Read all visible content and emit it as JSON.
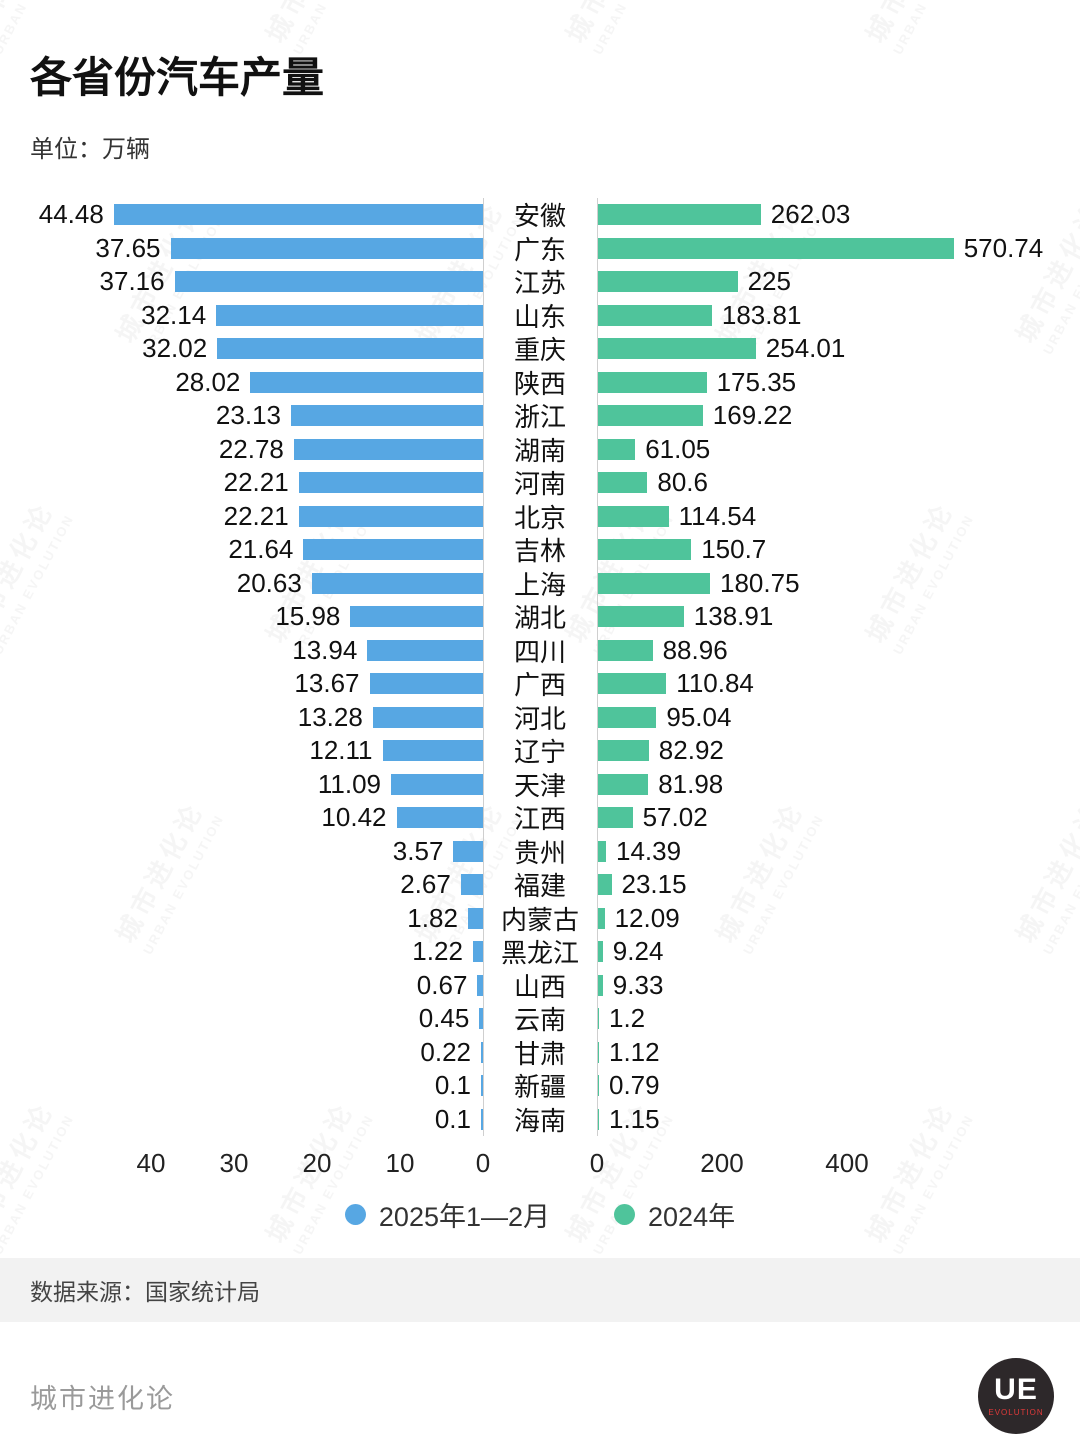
{
  "title": "各省份汽车产量",
  "unit": "单位：万辆",
  "watermark": {
    "line1": "城市进化论",
    "line2": "URBAN EVOLUTION"
  },
  "legend": [
    {
      "label": "2025年1—2月",
      "color": "#57a7e3"
    },
    {
      "label": "2024年",
      "color": "#4fc49b"
    }
  ],
  "source": "数据来源：国家统计局",
  "footer_brand": "城市进化论",
  "logo": {
    "monogram": "UE",
    "subtext": "EVOLUTION"
  },
  "chart_data": {
    "type": "bar",
    "orientation": "horizontal-bidirectional",
    "title": "各省份汽车产量",
    "unit": "万辆",
    "categories": [
      "安徽",
      "广东",
      "江苏",
      "山东",
      "重庆",
      "陕西",
      "浙江",
      "湖南",
      "河南",
      "北京",
      "吉林",
      "上海",
      "湖北",
      "四川",
      "广西",
      "河北",
      "辽宁",
      "天津",
      "江西",
      "贵州",
      "福建",
      "内蒙古",
      "黑龙江",
      "山西",
      "云南",
      "甘肃",
      "新疆",
      "海南"
    ],
    "series": [
      {
        "name": "2025年1—2月",
        "side": "left",
        "color": "#57a7e3",
        "values": [
          44.48,
          37.65,
          37.16,
          32.14,
          32.02,
          28.02,
          23.13,
          22.78,
          22.21,
          22.21,
          21.64,
          20.63,
          15.98,
          13.94,
          13.67,
          13.28,
          12.11,
          11.09,
          10.42,
          3.57,
          2.67,
          1.82,
          1.22,
          0.67,
          0.45,
          0.22,
          0.1,
          0.1
        ]
      },
      {
        "name": "2024年",
        "side": "right",
        "color": "#4fc49b",
        "values": [
          262.03,
          570.74,
          225,
          183.81,
          254.01,
          175.35,
          169.22,
          61.05,
          80.6,
          114.54,
          150.7,
          180.75,
          138.91,
          88.96,
          110.84,
          95.04,
          82.92,
          81.98,
          57.02,
          14.39,
          23.15,
          12.09,
          9.24,
          9.33,
          1.2,
          1.12,
          0.79,
          1.15
        ]
      }
    ],
    "left_axis": {
      "ticks": [
        40,
        30,
        20,
        10,
        0
      ]
    },
    "right_axis": {
      "ticks": [
        0,
        200,
        400
      ]
    },
    "grid": false,
    "legend_position": "bottom"
  }
}
